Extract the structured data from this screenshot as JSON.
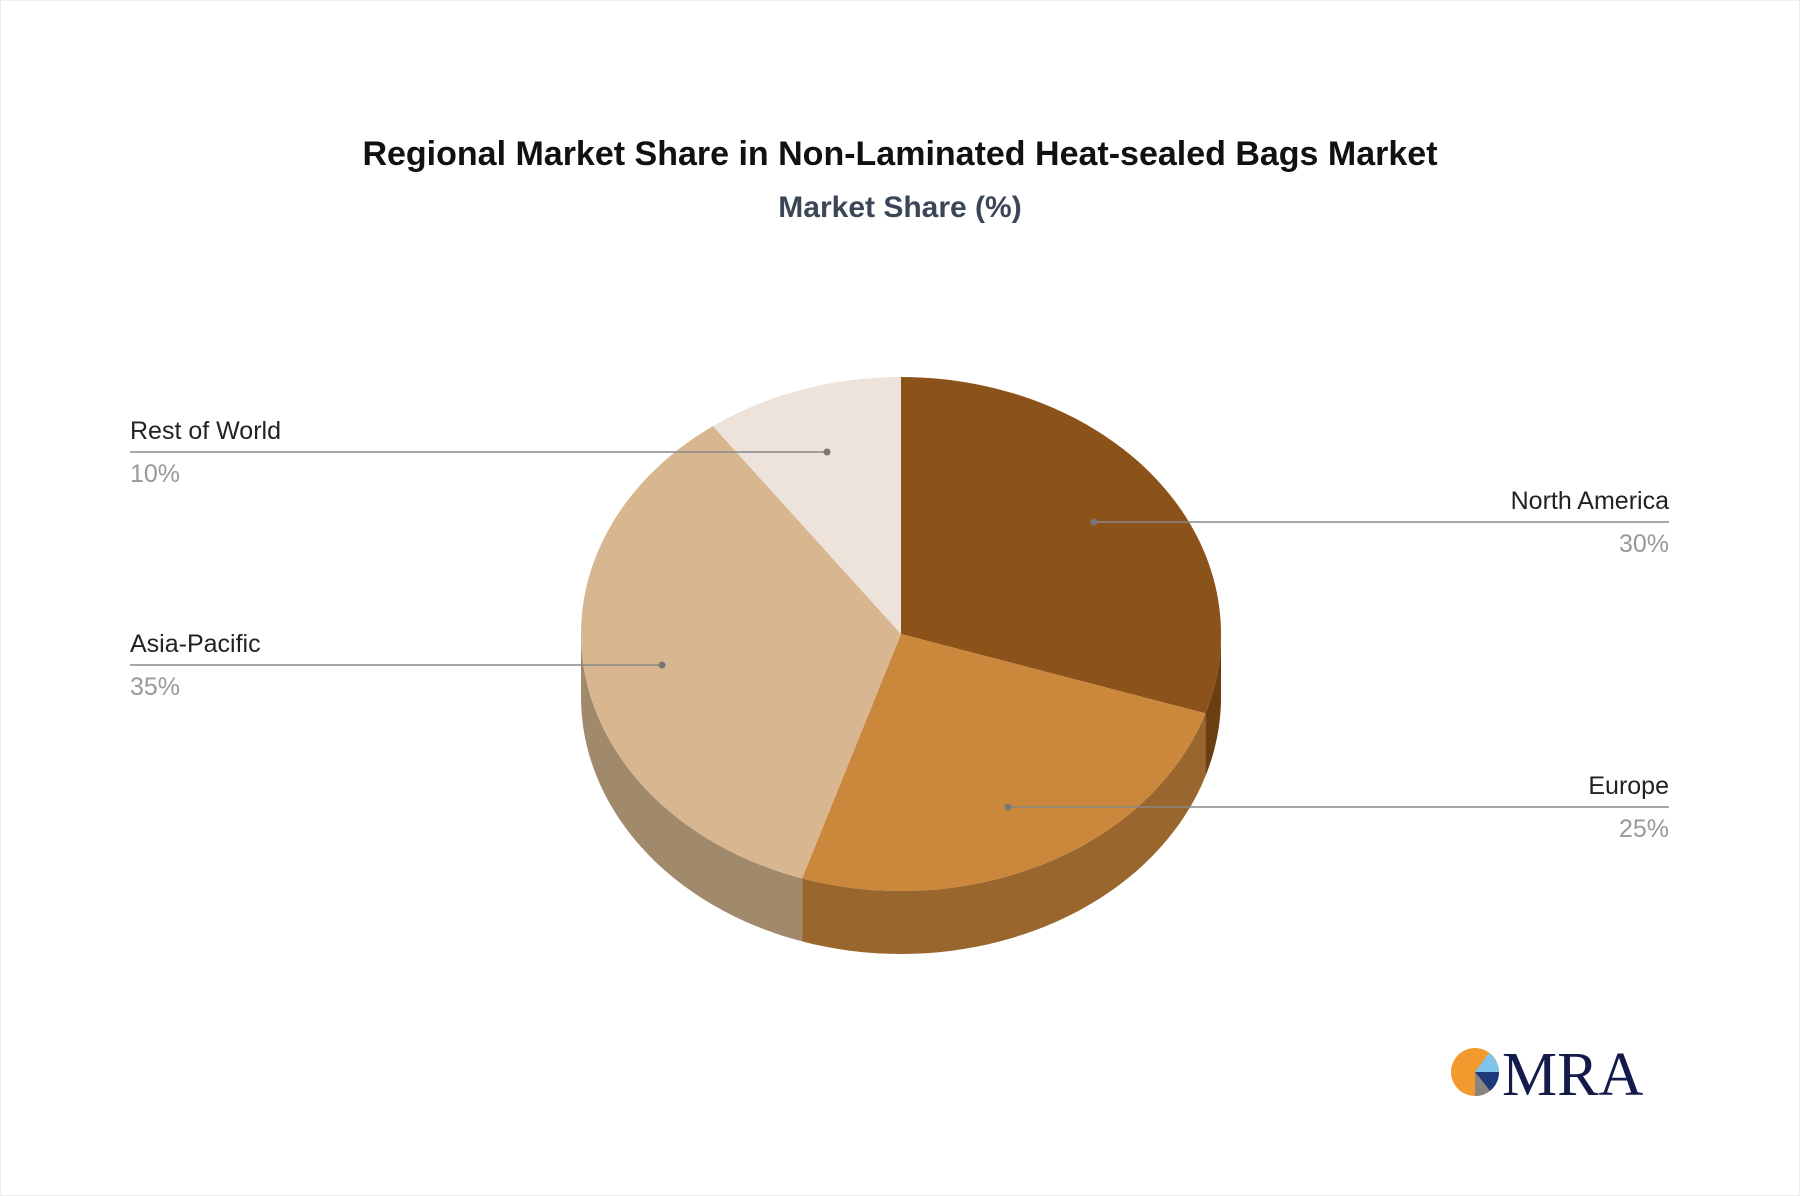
{
  "chart_data": {
    "type": "pie",
    "title": "Regional Market Share in Non-Laminated Heat-sealed Bags Market",
    "subtitle": "Market Share (%)",
    "categories": [
      "North America",
      "Europe",
      "Asia-Pacific",
      "Rest of World"
    ],
    "values": [
      30,
      25,
      35,
      10
    ],
    "value_labels": [
      "30%",
      "25%",
      "35%",
      "10%"
    ],
    "colors": [
      "#8B5319",
      "#CB873B",
      "#D7B690",
      "#EEE3DA"
    ],
    "side_colors": [
      "#6B3F12",
      "#99672D",
      "#A1896C",
      "#C9BEB5"
    ],
    "style": "3d"
  },
  "logo": {
    "text": "MRA"
  }
}
